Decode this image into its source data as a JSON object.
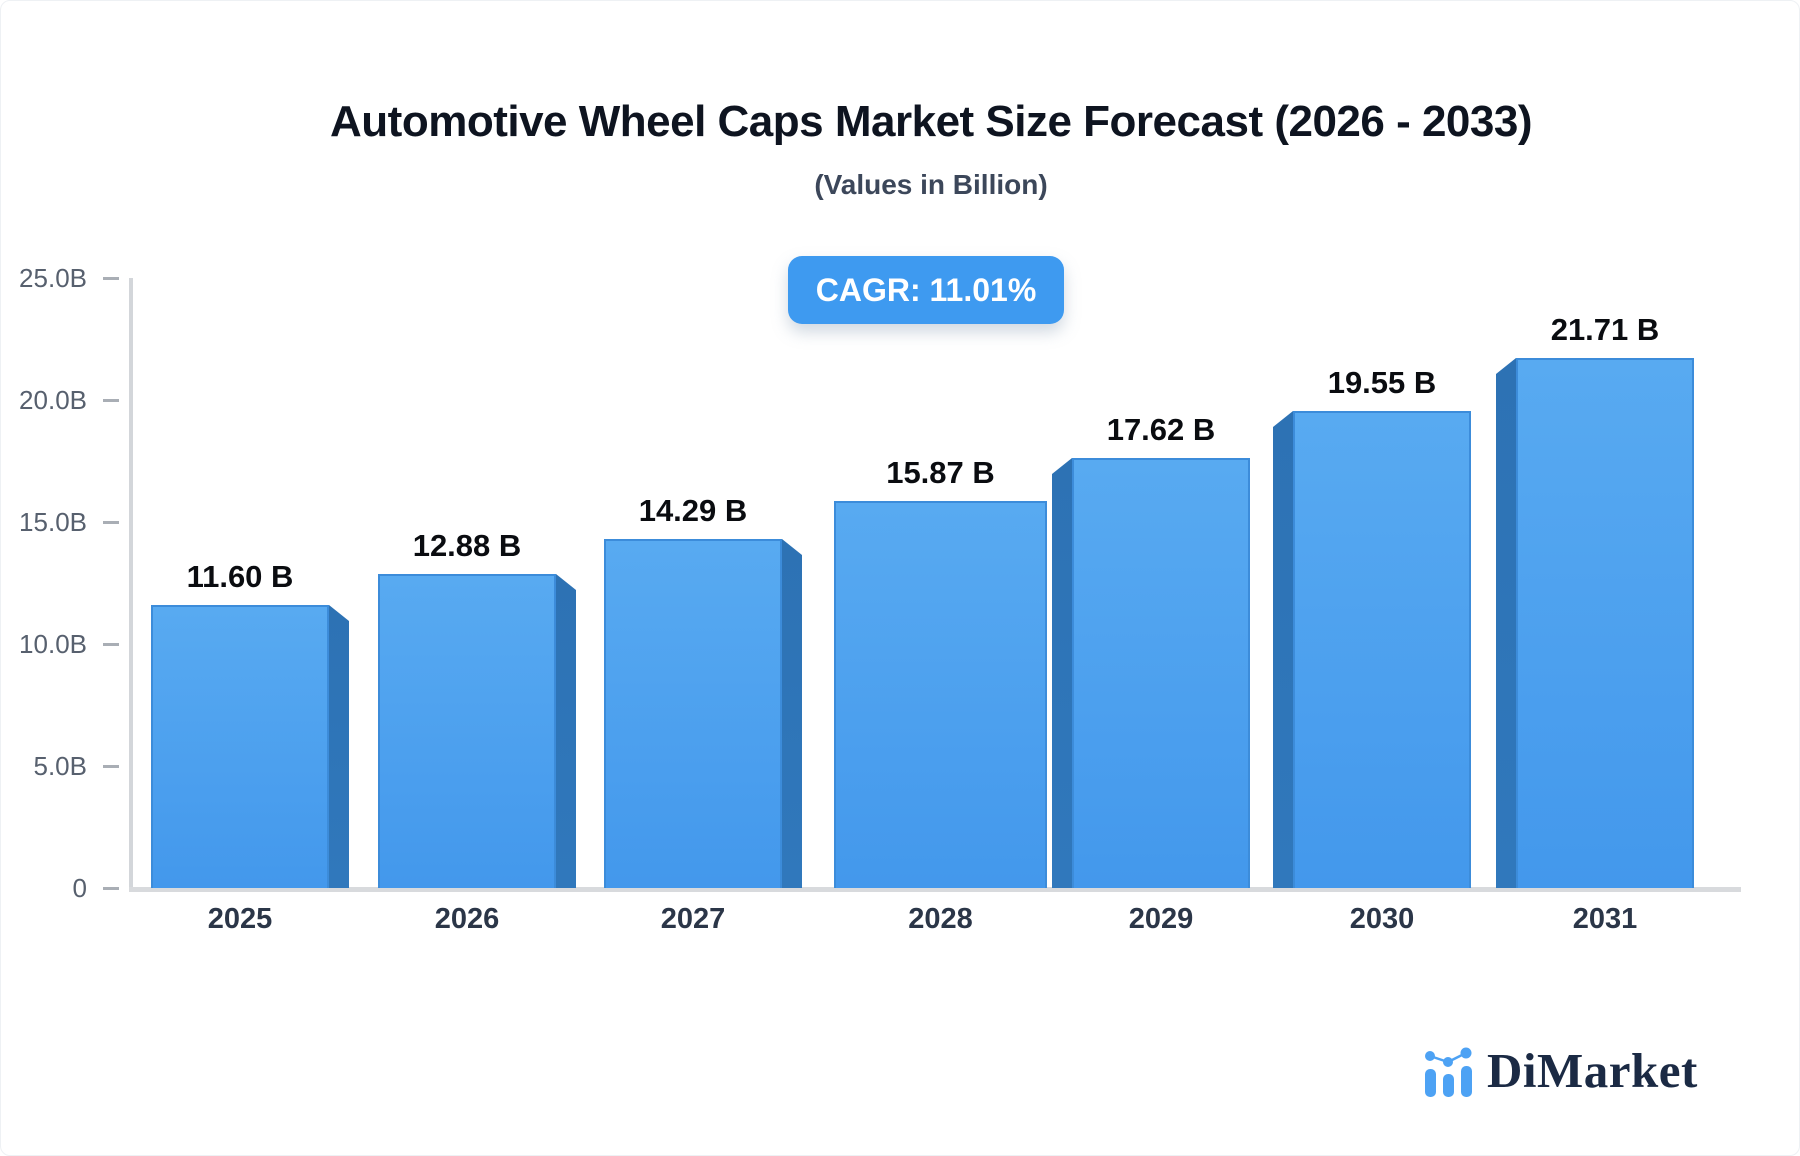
{
  "chart_data": {
    "type": "bar",
    "title": "Automotive Wheel Caps Market Size Forecast (2026 - 2033)",
    "subtitle": "(Values in Billion)",
    "badge_label": "CAGR: 11.01%",
    "categories": [
      "2025",
      "2026",
      "2027",
      "2028",
      "2029",
      "2030",
      "2031"
    ],
    "values": [
      11.6,
      12.88,
      14.29,
      15.87,
      17.62,
      19.55,
      21.71
    ],
    "value_labels": [
      "11.60 B",
      "12.88 B",
      "14.29 B",
      "15.87 B",
      "17.62 B",
      "19.55 B",
      "21.71 B"
    ],
    "unit": "Billion",
    "y_ticks": [
      {
        "label": "25.0B",
        "value": 25
      },
      {
        "label": "20.0B",
        "value": 20
      },
      {
        "label": "15.0B",
        "value": 15
      },
      {
        "label": "10.0B",
        "value": 10
      },
      {
        "label": "5.0B",
        "value": 5
      },
      {
        "label": "0",
        "value": 0
      }
    ],
    "ylim": [
      0,
      25
    ],
    "grid": false,
    "legend": false,
    "colors": {
      "bar_top": "#58aaf1",
      "bar_bottom": "#4398ec",
      "bar_border": "#3c8cda",
      "bar_side_top": "#2d72b4",
      "bar_side_bottom": "#3078bc",
      "accent": "#3e9af0"
    }
  },
  "branding": {
    "logo_text": "DiMarket",
    "logo_icon": "bar-chart-dots-icon",
    "logo_text_color": "#1b2a44",
    "logo_icon_color": "#4da2f4"
  }
}
